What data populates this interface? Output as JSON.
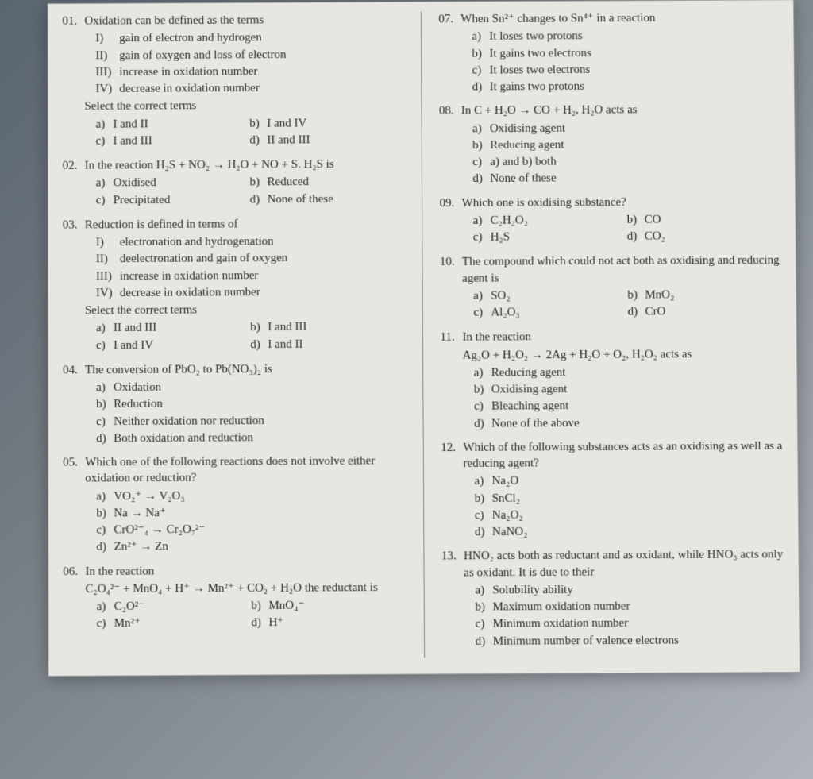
{
  "questions": {
    "q01": {
      "num": "01.",
      "text": "Oxidation can be defined as the terms",
      "romans": [
        {
          "label": "I)",
          "text": "gain of electron and hydrogen"
        },
        {
          "label": "II)",
          "text": "gain of oxygen and loss of electron"
        },
        {
          "label": "III)",
          "text": "increase in oxidation number"
        },
        {
          "label": "IV)",
          "text": "decrease in oxidation number"
        }
      ],
      "subprompt": "Select the correct terms",
      "opts": [
        {
          "label": "a)",
          "text": "I and II"
        },
        {
          "label": "b)",
          "text": "I and IV"
        },
        {
          "label": "c)",
          "text": "I and III"
        },
        {
          "label": "d)",
          "text": "II and III"
        }
      ]
    },
    "q02": {
      "num": "02.",
      "text": "In the reaction H₂S + NO₂ → H₂O + NO + S. H₂S is",
      "opts": [
        {
          "label": "a)",
          "text": "Oxidised"
        },
        {
          "label": "b)",
          "text": "Reduced"
        },
        {
          "label": "c)",
          "text": "Precipitated"
        },
        {
          "label": "d)",
          "text": "None of these"
        }
      ]
    },
    "q03": {
      "num": "03.",
      "text": "Reduction is defined in terms of",
      "romans": [
        {
          "label": "I)",
          "text": "electronation and hydrogenation"
        },
        {
          "label": "II)",
          "text": "deelectronation and gain of oxygen"
        },
        {
          "label": "III)",
          "text": "increase in oxidation number"
        },
        {
          "label": "IV)",
          "text": "decrease in oxidation number"
        }
      ],
      "subprompt": "Select the correct terms",
      "opts": [
        {
          "label": "a)",
          "text": "II and III"
        },
        {
          "label": "b)",
          "text": "I and III"
        },
        {
          "label": "c)",
          "text": "I and IV"
        },
        {
          "label": "d)",
          "text": "I and II"
        }
      ]
    },
    "q04": {
      "num": "04.",
      "text": "The conversion of PbO₂ to Pb(NO₃)₂ is",
      "opts": [
        {
          "label": "a)",
          "text": "Oxidation"
        },
        {
          "label": "b)",
          "text": "Reduction"
        },
        {
          "label": "c)",
          "text": "Neither oxidation nor reduction"
        },
        {
          "label": "d)",
          "text": "Both oxidation and reduction"
        }
      ]
    },
    "q05": {
      "num": "05.",
      "text": "Which one of the following reactions does not involve either oxidation or reduction?",
      "opts": [
        {
          "label": "a)",
          "text": "VO₂⁺ → V₂O₃"
        },
        {
          "label": "b)",
          "text": "Na → Na⁺"
        },
        {
          "label": "c)",
          "text": "CrO²⁻₄ → Cr₂O₇²⁻"
        },
        {
          "label": "d)",
          "text": "Zn²⁺ → Zn"
        }
      ]
    },
    "q06": {
      "num": "06.",
      "text": "In the reaction",
      "text2": "C₂O₄²⁻ + MnO₄ + H⁺ → Mn²⁺ + CO₂ + H₂O the reductant is",
      "opts": [
        {
          "label": "a)",
          "text": "C₂O²⁻"
        },
        {
          "label": "b)",
          "text": "MnO₄⁻"
        },
        {
          "label": "c)",
          "text": "Mn²⁺"
        },
        {
          "label": "d)",
          "text": "H⁺"
        }
      ]
    },
    "q07": {
      "num": "07.",
      "text": "When Sn²⁺ changes to Sn⁴⁺ in a reaction",
      "opts": [
        {
          "label": "a)",
          "text": "It loses two protons"
        },
        {
          "label": "b)",
          "text": "It gains two electrons"
        },
        {
          "label": "c)",
          "text": "It loses two electrons"
        },
        {
          "label": "d)",
          "text": "It gains two protons"
        }
      ]
    },
    "q08": {
      "num": "08.",
      "text": "In C + H₂O → CO + H₂, H₂O acts as",
      "opts": [
        {
          "label": "a)",
          "text": "Oxidising agent"
        },
        {
          "label": "b)",
          "text": "Reducing agent"
        },
        {
          "label": "c)",
          "text": "a) and b) both"
        },
        {
          "label": "d)",
          "text": "None of these"
        }
      ]
    },
    "q09": {
      "num": "09.",
      "text": "Which one is oxidising substance?",
      "opts": [
        {
          "label": "a)",
          "text": "C₂H₂O₂"
        },
        {
          "label": "b)",
          "text": "CO"
        },
        {
          "label": "c)",
          "text": "H₂S"
        },
        {
          "label": "d)",
          "text": "CO₂"
        }
      ]
    },
    "q10": {
      "num": "10.",
      "text": "The compound which could not act both as oxidising and reducing agent is",
      "opts": [
        {
          "label": "a)",
          "text": "SO₂"
        },
        {
          "label": "b)",
          "text": "MnO₂"
        },
        {
          "label": "c)",
          "text": "Al₂O₃"
        },
        {
          "label": "d)",
          "text": "CrO"
        }
      ]
    },
    "q11": {
      "num": "11.",
      "text": "In the reaction",
      "text2": "Ag₂O + H₂O₂ → 2Ag + H₂O + O₂, H₂O₂ acts as",
      "opts": [
        {
          "label": "a)",
          "text": "Reducing agent"
        },
        {
          "label": "b)",
          "text": "Oxidising agent"
        },
        {
          "label": "c)",
          "text": "Bleaching agent"
        },
        {
          "label": "d)",
          "text": "None of the above"
        }
      ]
    },
    "q12": {
      "num": "12.",
      "text": "Which of the following substances acts as an oxidising as well as a reducing agent?",
      "opts": [
        {
          "label": "a)",
          "text": "Na₂O"
        },
        {
          "label": "b)",
          "text": "SnCl₂"
        },
        {
          "label": "c)",
          "text": "Na₂O₂"
        },
        {
          "label": "d)",
          "text": "NaNO₂"
        }
      ]
    },
    "q13": {
      "num": "13.",
      "text": "HNO₂ acts both as reductant and as oxidant, while HNO₃ acts only as oxidant. It is due to their",
      "opts": [
        {
          "label": "a)",
          "text": "Solubility ability"
        },
        {
          "label": "b)",
          "text": "Maximum oxidation number"
        },
        {
          "label": "c)",
          "text": "Minimum oxidation number"
        },
        {
          "label": "d)",
          "text": "Minimum number of valence electrons"
        }
      ]
    }
  }
}
